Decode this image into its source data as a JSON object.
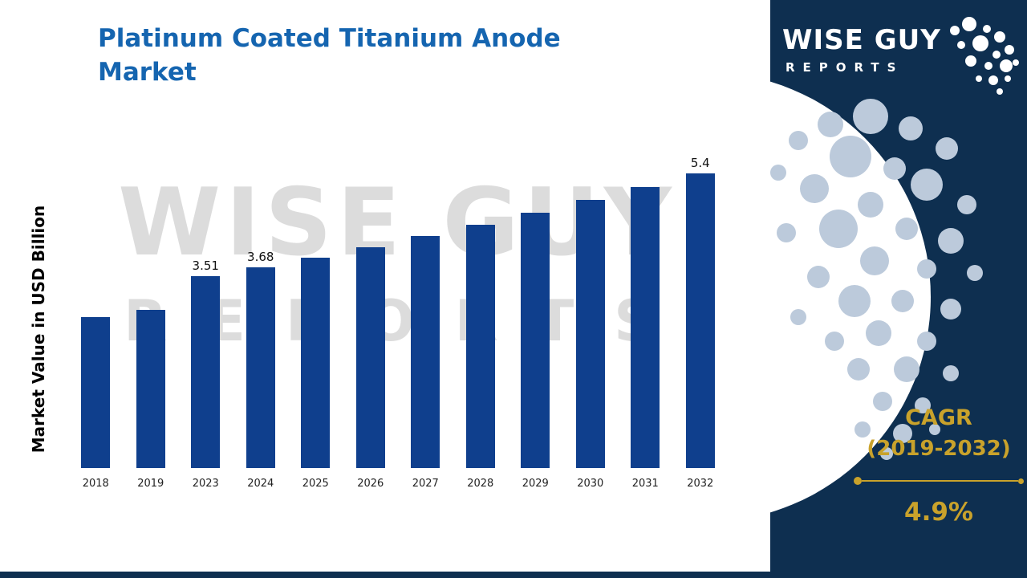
{
  "title": "Platinum Coated Titanium Anode Market",
  "ylabel": "Market Value in USD Billion",
  "watermark": {
    "line1": "WISE GUY",
    "line2": "REPORTS"
  },
  "logo": {
    "line1": "WISE GUY",
    "line2": "REPORTS"
  },
  "cagr": {
    "label": "CAGR",
    "range": "(2019-2032)",
    "value": "4.9%"
  },
  "colors": {
    "bar": "#0f3f8d",
    "panel": "#0e2f50",
    "title_blue": "#1565b0",
    "gold": "#c9a22b",
    "watermark_gray": "#dcdcdc"
  },
  "chart_data": {
    "type": "bar",
    "title": "Platinum Coated Titanium Anode Market",
    "xlabel": "",
    "ylabel": "Market Value in USD Billion",
    "categories": [
      "2018",
      "2019",
      "2023",
      "2024",
      "2025",
      "2026",
      "2027",
      "2028",
      "2029",
      "2030",
      "2031",
      "2032"
    ],
    "values": [
      2.76,
      2.9,
      3.51,
      3.68,
      3.86,
      4.05,
      4.25,
      4.46,
      4.68,
      4.91,
      5.15,
      5.4
    ],
    "bar_labels": [
      "",
      "",
      "3.51",
      "3.68",
      "",
      "",
      "",
      "",
      "",
      "",
      "",
      "5.4"
    ],
    "ylim": [
      0,
      6
    ],
    "grid": false,
    "legend": false,
    "bar_color": "#0f3f8d"
  }
}
